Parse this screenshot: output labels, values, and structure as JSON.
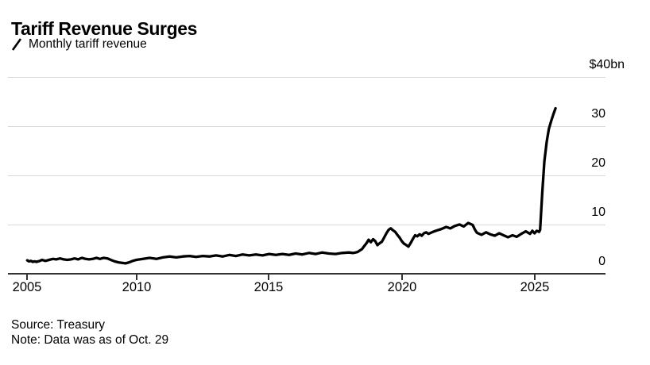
{
  "header": {
    "title": "Tariff Revenue Surges",
    "legend_label": "Monthly tariff revenue"
  },
  "footer": {
    "source": "Source: Treasury",
    "note": "Note: Data was as of Oct. 29"
  },
  "colors": {
    "line": "#000000",
    "gridline": "#d9d9d9",
    "axis": "#333333",
    "text": "#000000"
  },
  "chart_data": {
    "type": "line",
    "title": "Tariff Revenue Surges",
    "series_name": "Monthly tariff revenue",
    "unit": "$bn",
    "ylabel": "",
    "xlabel": "",
    "ylim": [
      0,
      40
    ],
    "grid": "horizontal",
    "legend_position": "top-left",
    "y_ticks": [
      "$40bn",
      "30",
      "20",
      "10",
      "0"
    ],
    "y_tick_values": [
      40,
      30,
      20,
      10,
      0
    ],
    "x_ticks": [
      "2005",
      "2010",
      "2015",
      "2020",
      "2025"
    ],
    "x_tick_values": [
      2005,
      2010,
      2015,
      2020,
      2025
    ],
    "points": [
      [
        2005.0,
        2.8
      ],
      [
        2005.08,
        2.6
      ],
      [
        2005.17,
        2.7
      ],
      [
        2005.25,
        2.5
      ],
      [
        2005.33,
        2.6
      ],
      [
        2005.42,
        2.5
      ],
      [
        2005.5,
        2.6
      ],
      [
        2005.58,
        2.7
      ],
      [
        2005.67,
        2.9
      ],
      [
        2005.75,
        2.8
      ],
      [
        2005.83,
        2.7
      ],
      [
        2005.92,
        2.8
      ],
      [
        2006.0,
        2.9
      ],
      [
        2006.17,
        3.1
      ],
      [
        2006.33,
        3.0
      ],
      [
        2006.5,
        3.2
      ],
      [
        2006.67,
        3.0
      ],
      [
        2006.83,
        2.9
      ],
      [
        2007.0,
        3.0
      ],
      [
        2007.17,
        3.2
      ],
      [
        2007.33,
        3.0
      ],
      [
        2007.5,
        3.3
      ],
      [
        2007.67,
        3.1
      ],
      [
        2007.83,
        3.0
      ],
      [
        2008.0,
        3.1
      ],
      [
        2008.17,
        3.3
      ],
      [
        2008.33,
        3.1
      ],
      [
        2008.5,
        3.3
      ],
      [
        2008.67,
        3.2
      ],
      [
        2008.83,
        2.9
      ],
      [
        2009.0,
        2.6
      ],
      [
        2009.17,
        2.4
      ],
      [
        2009.33,
        2.3
      ],
      [
        2009.5,
        2.2
      ],
      [
        2009.67,
        2.4
      ],
      [
        2009.83,
        2.7
      ],
      [
        2010.0,
        2.9
      ],
      [
        2010.25,
        3.1
      ],
      [
        2010.5,
        3.3
      ],
      [
        2010.75,
        3.1
      ],
      [
        2011.0,
        3.4
      ],
      [
        2011.25,
        3.6
      ],
      [
        2011.5,
        3.4
      ],
      [
        2011.75,
        3.6
      ],
      [
        2012.0,
        3.7
      ],
      [
        2012.25,
        3.5
      ],
      [
        2012.5,
        3.7
      ],
      [
        2012.75,
        3.6
      ],
      [
        2013.0,
        3.8
      ],
      [
        2013.25,
        3.6
      ],
      [
        2013.5,
        3.9
      ],
      [
        2013.75,
        3.7
      ],
      [
        2014.0,
        4.0
      ],
      [
        2014.25,
        3.8
      ],
      [
        2014.5,
        4.0
      ],
      [
        2014.75,
        3.8
      ],
      [
        2015.0,
        4.1
      ],
      [
        2015.25,
        3.9
      ],
      [
        2015.5,
        4.1
      ],
      [
        2015.75,
        3.9
      ],
      [
        2016.0,
        4.2
      ],
      [
        2016.25,
        4.0
      ],
      [
        2016.5,
        4.3
      ],
      [
        2016.75,
        4.1
      ],
      [
        2017.0,
        4.4
      ],
      [
        2017.25,
        4.2
      ],
      [
        2017.5,
        4.1
      ],
      [
        2017.75,
        4.3
      ],
      [
        2018.0,
        4.4
      ],
      [
        2018.17,
        4.3
      ],
      [
        2018.33,
        4.5
      ],
      [
        2018.5,
        5.1
      ],
      [
        2018.58,
        5.7
      ],
      [
        2018.67,
        6.3
      ],
      [
        2018.75,
        7.0
      ],
      [
        2018.83,
        6.5
      ],
      [
        2018.92,
        7.1
      ],
      [
        2019.0,
        6.7
      ],
      [
        2019.08,
        5.9
      ],
      [
        2019.17,
        6.3
      ],
      [
        2019.25,
        6.6
      ],
      [
        2019.33,
        7.4
      ],
      [
        2019.42,
        8.3
      ],
      [
        2019.5,
        9.0
      ],
      [
        2019.58,
        9.3
      ],
      [
        2019.67,
        8.9
      ],
      [
        2019.75,
        8.6
      ],
      [
        2019.83,
        8.0
      ],
      [
        2019.92,
        7.4
      ],
      [
        2020.0,
        6.7
      ],
      [
        2020.08,
        6.2
      ],
      [
        2020.17,
        5.9
      ],
      [
        2020.25,
        5.6
      ],
      [
        2020.33,
        6.3
      ],
      [
        2020.42,
        7.2
      ],
      [
        2020.5,
        7.9
      ],
      [
        2020.58,
        7.7
      ],
      [
        2020.67,
        8.1
      ],
      [
        2020.75,
        7.8
      ],
      [
        2020.83,
        8.3
      ],
      [
        2020.92,
        8.5
      ],
      [
        2021.0,
        8.2
      ],
      [
        2021.17,
        8.6
      ],
      [
        2021.33,
        8.9
      ],
      [
        2021.5,
        9.2
      ],
      [
        2021.67,
        9.6
      ],
      [
        2021.83,
        9.3
      ],
      [
        2022.0,
        9.8
      ],
      [
        2022.17,
        10.1
      ],
      [
        2022.33,
        9.7
      ],
      [
        2022.5,
        10.4
      ],
      [
        2022.67,
        10.0
      ],
      [
        2022.75,
        9.1
      ],
      [
        2022.83,
        8.4
      ],
      [
        2023.0,
        8.0
      ],
      [
        2023.17,
        8.5
      ],
      [
        2023.33,
        8.1
      ],
      [
        2023.5,
        7.8
      ],
      [
        2023.67,
        8.3
      ],
      [
        2023.83,
        7.9
      ],
      [
        2024.0,
        7.5
      ],
      [
        2024.17,
        7.9
      ],
      [
        2024.33,
        7.6
      ],
      [
        2024.5,
        8.2
      ],
      [
        2024.67,
        8.7
      ],
      [
        2024.83,
        8.2
      ],
      [
        2024.92,
        8.8
      ],
      [
        2025.0,
        8.3
      ],
      [
        2025.08,
        8.8
      ],
      [
        2025.17,
        8.6
      ],
      [
        2025.21,
        9.0
      ],
      [
        2025.29,
        16.5
      ],
      [
        2025.37,
        23.0
      ],
      [
        2025.46,
        27.0
      ],
      [
        2025.54,
        29.5
      ],
      [
        2025.62,
        31.0
      ],
      [
        2025.71,
        32.5
      ],
      [
        2025.79,
        33.7
      ]
    ]
  }
}
